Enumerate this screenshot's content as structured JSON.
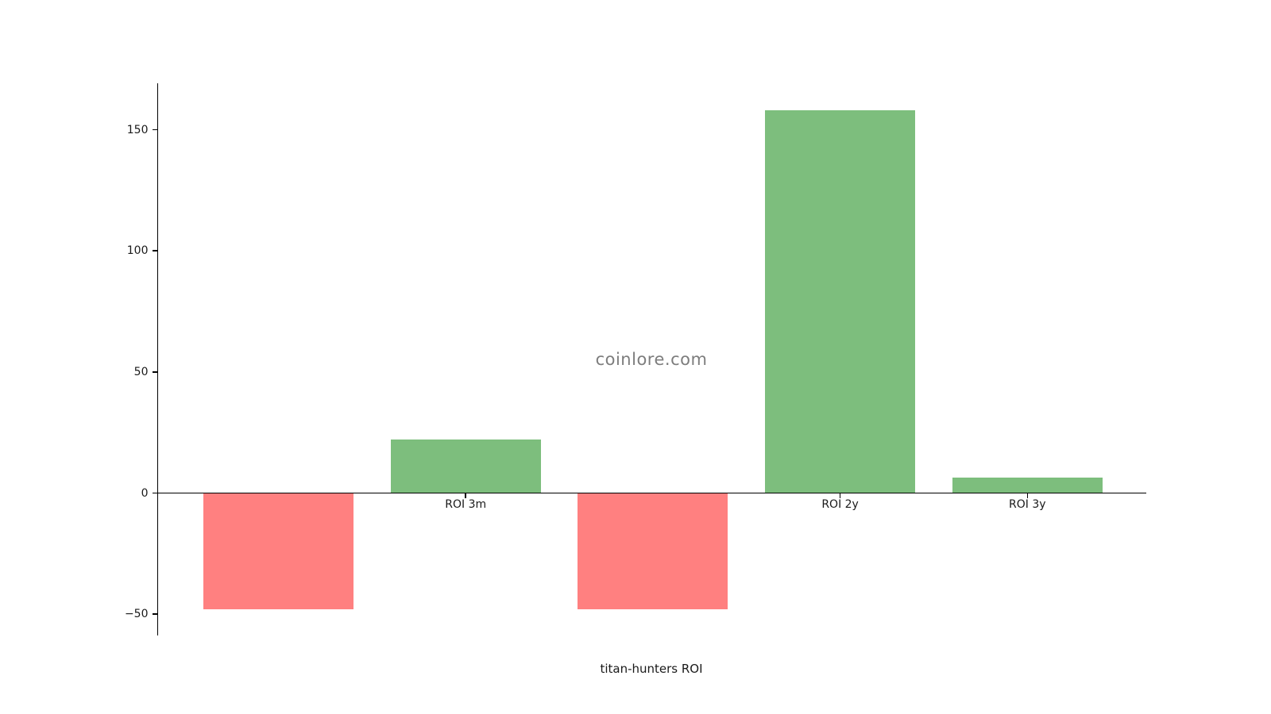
{
  "title": {
    "text": "titan-hunters ROI"
  },
  "watermark": {
    "text": "coinlore.com",
    "color": "#7d7d7d"
  },
  "colors": {
    "positive_bar": "#7dbe7d",
    "negative_bar": "#ff8080",
    "axis": "#000000",
    "tick_label": "#1a1a1a"
  },
  "chart_data": {
    "type": "bar",
    "title": "titan-hunters ROI",
    "watermark": "coinlore.com",
    "categories": [
      "",
      "ROI 3m",
      "",
      "ROI 2y",
      "ROI 3y"
    ],
    "values": [
      -48,
      22,
      -48,
      158,
      6.5
    ],
    "bar_colors": [
      "#ff8080",
      "#7dbe7d",
      "#ff8080",
      "#7dbe7d",
      "#7dbe7d"
    ],
    "yticks": [
      150,
      100,
      50,
      0,
      -50
    ],
    "ylim": [
      -58,
      169
    ],
    "xlabel": "",
    "ylabel": "",
    "grid": false,
    "legend": false,
    "layout_note": "x tick labels of bars 1 and 3 are hidden behind the negative (red) bars; horizontal zero axis drawn over bars"
  }
}
